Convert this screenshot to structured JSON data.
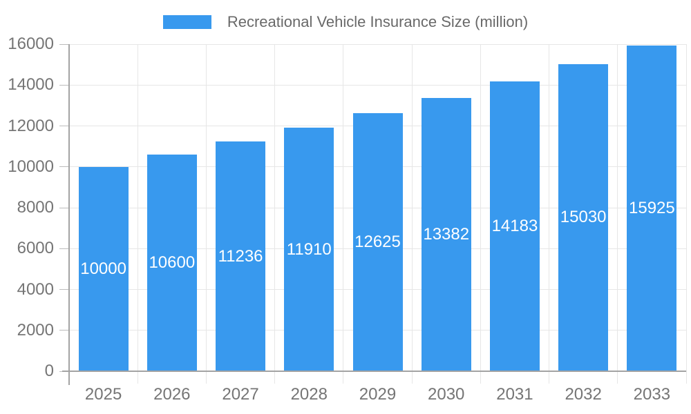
{
  "legend": {
    "label": "Recreational Vehicle Insurance Size (million)"
  },
  "chart_data": {
    "type": "bar",
    "title": "",
    "categories": [
      "2025",
      "2026",
      "2027",
      "2028",
      "2029",
      "2030",
      "2031",
      "2032",
      "2033"
    ],
    "values": [
      10000,
      10600,
      11236,
      11910,
      12625,
      13382,
      14183,
      15030,
      15925
    ],
    "series": [
      {
        "name": "Recreational Vehicle Insurance Size (million)",
        "values": [
          10000,
          10600,
          11236,
          11910,
          12625,
          13382,
          14183,
          15030,
          15925
        ]
      }
    ],
    "xlabel": "",
    "ylabel": "",
    "ylim": [
      0,
      16000
    ],
    "ytick_step": 2000,
    "yticks": [
      0,
      2000,
      4000,
      6000,
      8000,
      10000,
      12000,
      14000,
      16000
    ],
    "grid": true,
    "legend_position": "top",
    "bar_labels_shown": true,
    "colors": {
      "bar": "#3899EE",
      "bar_label": "#FFFFFF",
      "axis_text": "#757575",
      "legend_text": "#696969",
      "gridline": "#E6E6E6",
      "tick": "#BBBBBB",
      "axis_line": "#A3A3A3",
      "background": "#FFFFFF"
    }
  }
}
